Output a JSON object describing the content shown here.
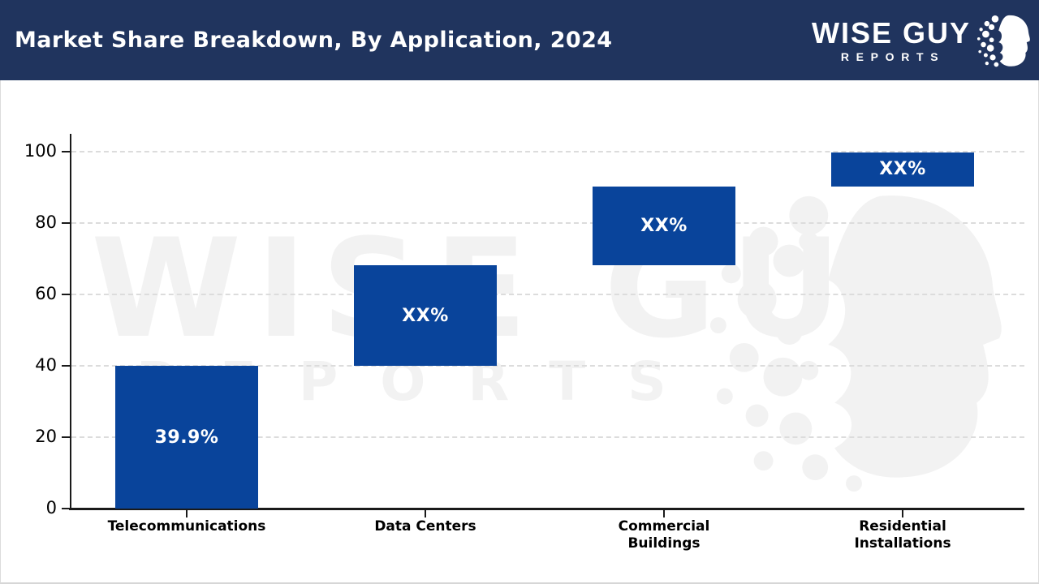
{
  "header": {
    "title": "Market Share Breakdown, By Application, 2024",
    "brand": {
      "line1": "WISE GUY",
      "line2": "REPORTS"
    }
  },
  "watermark": {
    "line1": "WISE GUY",
    "line2": "REPORTS"
  },
  "colors": {
    "header_bg": "#20345e",
    "bar_blue": "#09449b",
    "gridline": "#dcdcdc",
    "axis": "#1a1a1a",
    "watermark_gray": "#f2f2f2",
    "bar_label_text": "#ffffff"
  },
  "chart_data": {
    "type": "bar",
    "subtype": "waterfall",
    "title": "Market Share Breakdown, By Application, 2024",
    "categories": [
      "Telecommunications",
      "Data Centers",
      "Commercial Buildings",
      "Residential Installations"
    ],
    "category_lines": [
      [
        "Telecommunications"
      ],
      [
        "Data Centers"
      ],
      [
        "Commercial",
        "Buildings"
      ],
      [
        "Residential",
        "Installations"
      ]
    ],
    "bars": [
      {
        "category": "Telecommunications",
        "start": 0,
        "end": 39.9,
        "value": 39.9,
        "label": "39.9%"
      },
      {
        "category": "Data Centers",
        "start": 39.9,
        "end": 68.1,
        "value": 28.2,
        "label": "XX%"
      },
      {
        "category": "Commercial Buildings",
        "start": 68.1,
        "end": 90.2,
        "value": 22.1,
        "label": "XX%"
      },
      {
        "category": "Residential Installations",
        "start": 90.2,
        "end": 99.8,
        "value": 9.6,
        "label": "XX%"
      }
    ],
    "yticks": [
      0,
      20,
      40,
      60,
      80,
      100
    ],
    "ylim": [
      0,
      105
    ],
    "xlabel": "",
    "ylabel": "",
    "grid": "horizontal-dashed",
    "legend": "none",
    "bar_color": "#09449b"
  }
}
